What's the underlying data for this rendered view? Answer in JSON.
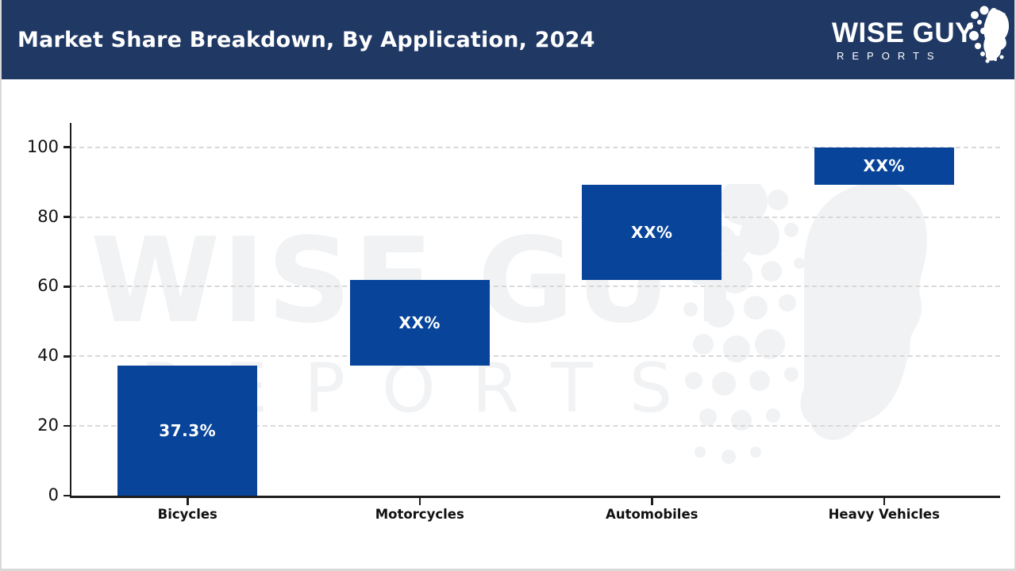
{
  "header": {
    "title": "Market Share Breakdown, By Application, 2024",
    "logo": {
      "line1": "WISE GUY",
      "line2": "REPORTS"
    }
  },
  "watermark": {
    "line1": "WISE GUY",
    "line2": "REPORTS"
  },
  "colors": {
    "header_bg": "#1f3864",
    "bar": "#07449a",
    "grid": "#d8d8d8",
    "axis": "#1d1d1d",
    "bar_label": "#ffffff",
    "watermark": "#f1f2f4"
  },
  "chart_data": {
    "type": "bar",
    "subtype": "waterfall",
    "title": "Market Share Breakdown, By Application, 2024",
    "categories": [
      "Bicycles",
      "Motorcycles",
      "Automobiles",
      "Heavy Vehicles"
    ],
    "bars": [
      {
        "category": "Bicycles",
        "start": 0,
        "end": 37.3,
        "label": "37.3%"
      },
      {
        "category": "Motorcycles",
        "start": 37.3,
        "end": 61.9,
        "label": "XX%"
      },
      {
        "category": "Automobiles",
        "start": 61.9,
        "end": 89.2,
        "label": "XX%"
      },
      {
        "category": "Heavy Vehicles",
        "start": 89.2,
        "end": 100.0,
        "label": "XX%"
      }
    ],
    "yticks": [
      0,
      20,
      40,
      60,
      80,
      100
    ],
    "ylim": [
      0,
      107
    ],
    "xlabel": "",
    "ylabel": "",
    "grid": "horizontal-dashed",
    "legend": "none"
  }
}
